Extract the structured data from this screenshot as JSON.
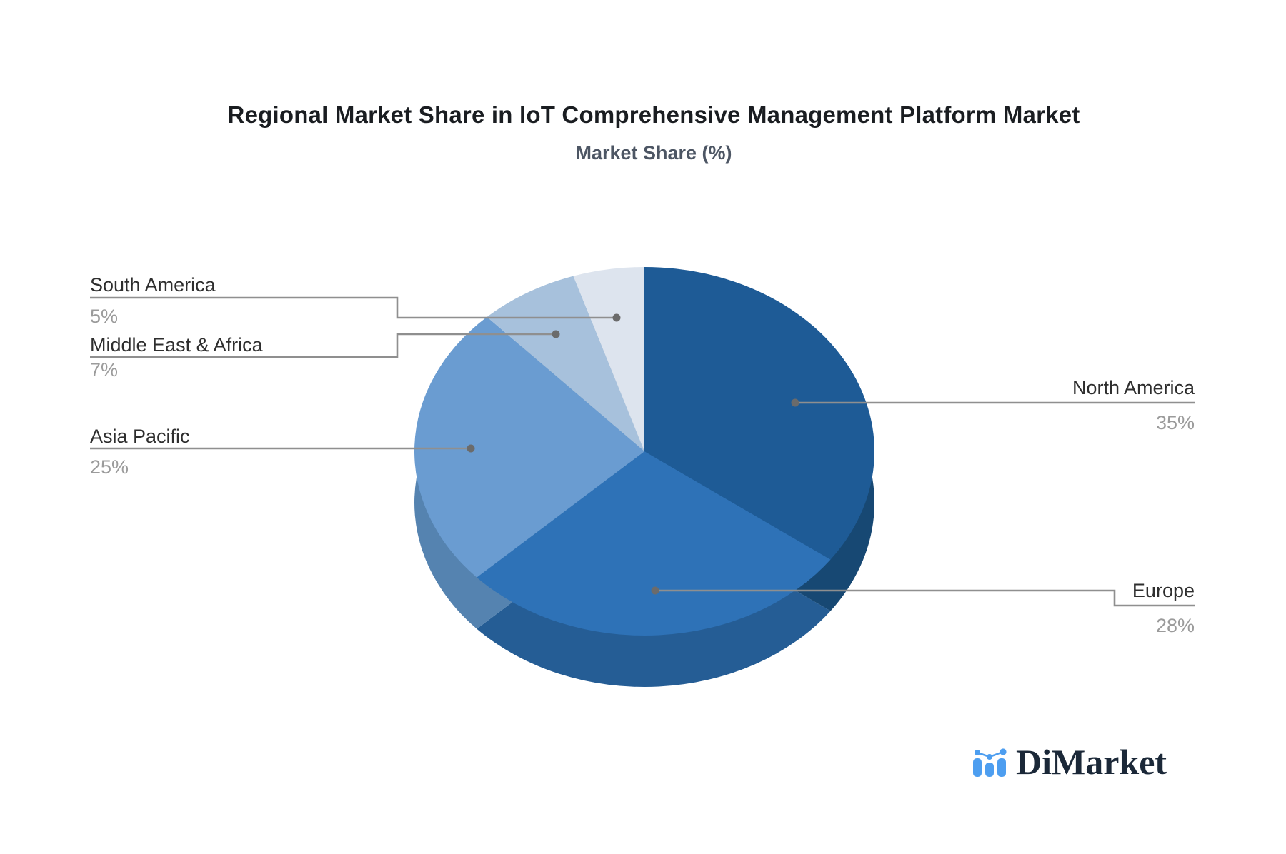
{
  "page": {
    "title": "Regional Market Share in IoT Comprehensive Management Platform Market",
    "subtitle": "Market Share (%)"
  },
  "logo": {
    "brand": "DiMarket",
    "icon": "bar-line-chart-icon",
    "icon_color": "#4d9ef0",
    "text_color": "#1b2838"
  },
  "chart_data": {
    "type": "pie",
    "style": "3d-pie",
    "title": "Regional Market Share in IoT Comprehensive Management Platform Market",
    "subtitle": "Market Share (%)",
    "unit": "%",
    "start_angle_deg": 0,
    "direction": "clockwise",
    "legend": "none",
    "label_style": "callout labels with leader lines and dots",
    "categories": [
      "North America",
      "Europe",
      "Asia Pacific",
      "Middle East & Africa",
      "South America"
    ],
    "values": [
      35,
      28,
      25,
      7,
      5
    ],
    "series": [
      {
        "name": "North America",
        "value": 35,
        "label": "35%",
        "color": "#1e5b96",
        "side_color": "#174873"
      },
      {
        "name": "Europe",
        "value": 28,
        "label": "28%",
        "color": "#2e72b7",
        "side_color": "#255d95"
      },
      {
        "name": "Asia Pacific",
        "value": 25,
        "label": "25%",
        "color": "#6a9cd1",
        "side_color": "#5583b0"
      },
      {
        "name": "Middle East & Africa",
        "value": 7,
        "label": "7%",
        "color": "#a7c1dc",
        "side_color": "#8ba7c3"
      },
      {
        "name": "South America",
        "value": 5,
        "label": "5%",
        "color": "#dde4ee",
        "side_color": "#bac7d6"
      }
    ],
    "colors": {
      "callout_line": "#8f8f8f",
      "callout_dot": "#6b6b6b",
      "label_text": "#2e2e2e",
      "value_text": "#9b9b9b",
      "background": "#ffffff"
    }
  }
}
